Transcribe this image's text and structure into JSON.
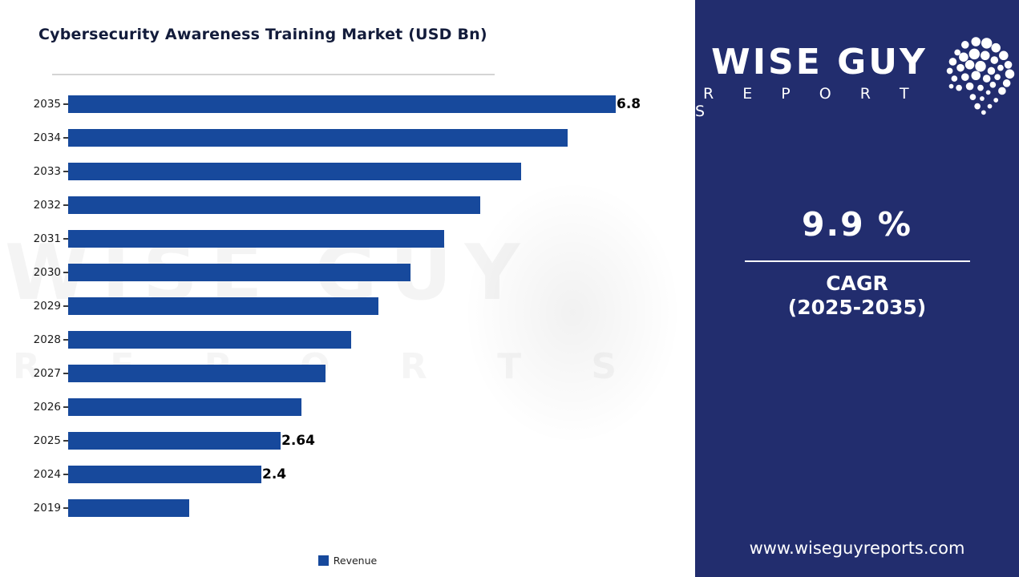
{
  "chart": {
    "title": "Cybersecurity Awareness Training Market (USD Bn)",
    "legend_label": "Revenue",
    "bar_color": "#17499c"
  },
  "chart_data": {
    "type": "bar",
    "orientation": "horizontal",
    "title": "Cybersecurity Awareness Training Market (USD Bn)",
    "categories": [
      "2035",
      "2034",
      "2033",
      "2032",
      "2031",
      "2030",
      "2029",
      "2028",
      "2027",
      "2026",
      "2025",
      "2024",
      "2019"
    ],
    "values": [
      6.8,
      6.2,
      5.63,
      5.12,
      4.67,
      4.25,
      3.85,
      3.51,
      3.2,
      2.9,
      2.64,
      2.4,
      1.5
    ],
    "data_labels": {
      "2035": "6.8",
      "2025": "2.64",
      "2024": "2.4"
    },
    "xlabel": "",
    "ylabel": "",
    "xlim": [
      0,
      7
    ],
    "x_axis_visible": false,
    "grid": false,
    "legend": [
      "Revenue"
    ],
    "legend_position": "bottom"
  },
  "watermark": {
    "line1": "WISE GUY",
    "line2": "R E P O R T S"
  },
  "brand_panel": {
    "background_color": "#222d6e",
    "logo_line1": "WISE GUY",
    "logo_line2": "R E P O R T S",
    "cagr_value": "9.9 %",
    "cagr_label_line1": "CAGR",
    "cagr_label_line2": "(2025-2035)",
    "website": "www.wiseguyreports.com"
  }
}
